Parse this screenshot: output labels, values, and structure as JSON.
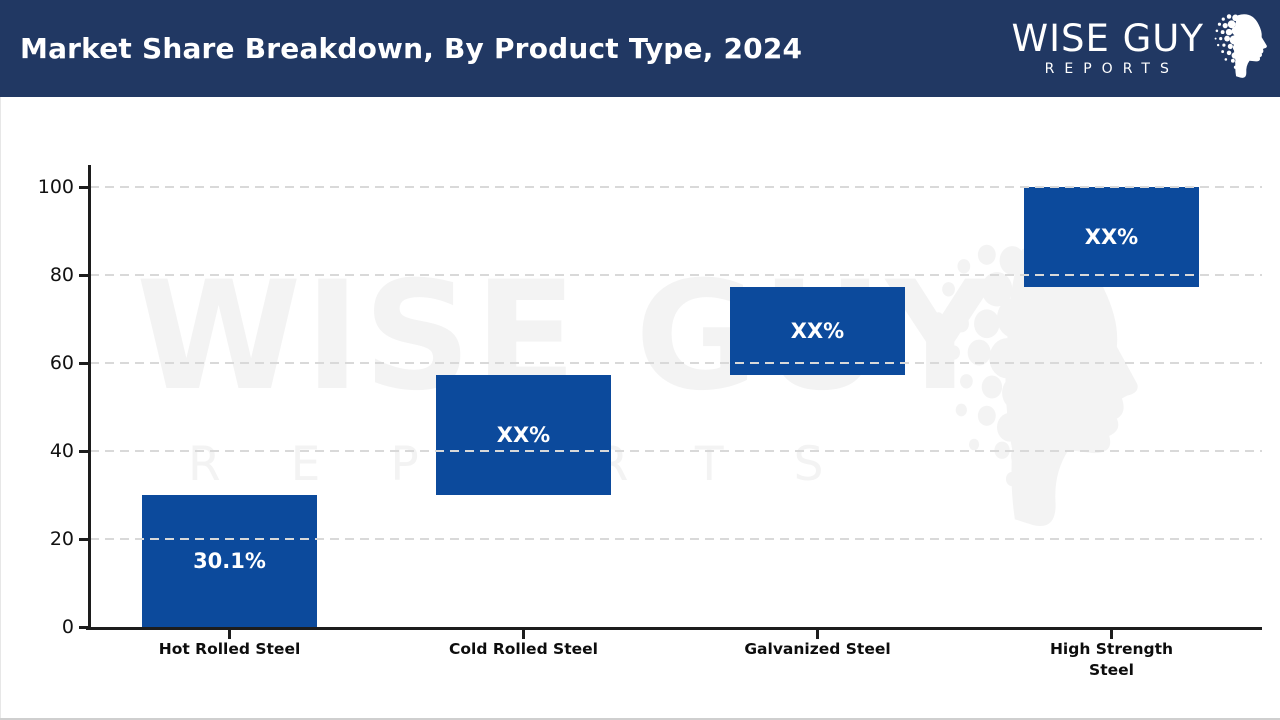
{
  "header": {
    "title": "Market Share Breakdown, By Product Type, 2024",
    "logo": {
      "brand": "WISE GUY",
      "sub": "REPORTS"
    }
  },
  "watermark": {
    "brand": "WISE GUY",
    "sub": "REPORTS"
  },
  "chart_data": {
    "type": "bar",
    "subtype": "waterfall",
    "title": "Market Share Breakdown, By Product Type, 2024",
    "categories": [
      "Hot Rolled Steel",
      "Cold Rolled Steel",
      "Galvanized Steel",
      "High Strength Steel"
    ],
    "series": [
      {
        "name": "Market share (%)",
        "segments": [
          {
            "category": "Hot Rolled Steel",
            "start": 0,
            "end": 30.1,
            "label": "30.1%"
          },
          {
            "category": "Cold Rolled Steel",
            "start": 30.1,
            "end": 57.2,
            "label": "XX%"
          },
          {
            "category": "Galvanized Steel",
            "start": 57.2,
            "end": 77.2,
            "label": "XX%"
          },
          {
            "category": "High Strength Steel",
            "start": 77.2,
            "end": 100,
            "label": "XX%"
          }
        ]
      }
    ],
    "yticks": [
      0,
      20,
      40,
      60,
      80,
      100
    ],
    "ylim": [
      0,
      105
    ],
    "xlabel": "",
    "ylabel": "",
    "grid": {
      "axis": "y",
      "style": "dashed",
      "color": "#d9d9d9",
      "on": true
    },
    "legend": "none",
    "colors": {
      "bar": "#0c4a9c",
      "bar_label": "#ffffff",
      "header_bg": "#213863",
      "watermark": "#f3f3f3",
      "axis": "#1d1d1d"
    }
  }
}
